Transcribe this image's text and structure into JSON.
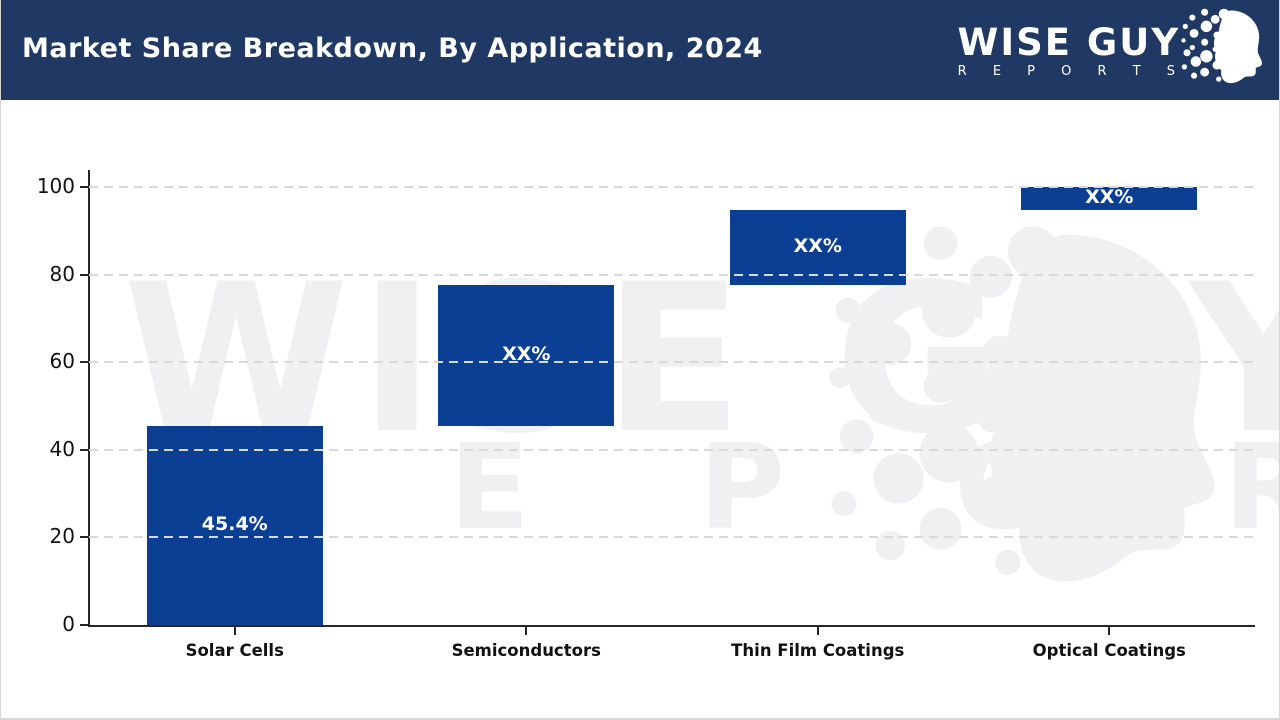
{
  "header": {
    "title": "Market Share Breakdown, By Application, 2024",
    "logo": {
      "line1": "WISE GUY",
      "line2": "REPORTS",
      "face_icon": "dotted-head-profile"
    }
  },
  "watermark": {
    "line1": "WISE GUY",
    "line2": "REPORTS",
    "face_icon": "dotted-head-profile"
  },
  "colors": {
    "header_bg": "#203864",
    "bar_blue": "#0b3f94",
    "gridline": "#d9d9d9",
    "axis": "#262626",
    "watermark": "#f0f0f2",
    "page_border": "#d6d6d6"
  },
  "chart_data": {
    "type": "bar",
    "subtype": "waterfall",
    "title": "Market Share Breakdown, By Application, 2024",
    "xlabel": "",
    "ylabel": "",
    "categories": [
      "Solar Cells",
      "Semiconductors",
      "Thin Film Coatings",
      "Optical Coatings"
    ],
    "segments": [
      {
        "category": "Solar Cells",
        "start": 0,
        "end": 45.4,
        "value": 45.4,
        "label": "45.4%"
      },
      {
        "category": "Semiconductors",
        "start": 45.4,
        "end": 77.6,
        "value": 32.2,
        "label": "XX%"
      },
      {
        "category": "Thin Film Coatings",
        "start": 77.6,
        "end": 94.7,
        "value": 17.1,
        "label": "XX%"
      },
      {
        "category": "Optical Coatings",
        "start": 94.7,
        "end": 100,
        "value": 5.3,
        "label": "XX%"
      }
    ],
    "yticks": [
      0,
      20,
      40,
      60,
      80,
      100
    ],
    "ylim": [
      0,
      104
    ],
    "grid": "horizontal-dashed, drawn above bars",
    "legend": "none",
    "bar_label_color": "#ffffff",
    "bar_color": "#0b3f94"
  }
}
